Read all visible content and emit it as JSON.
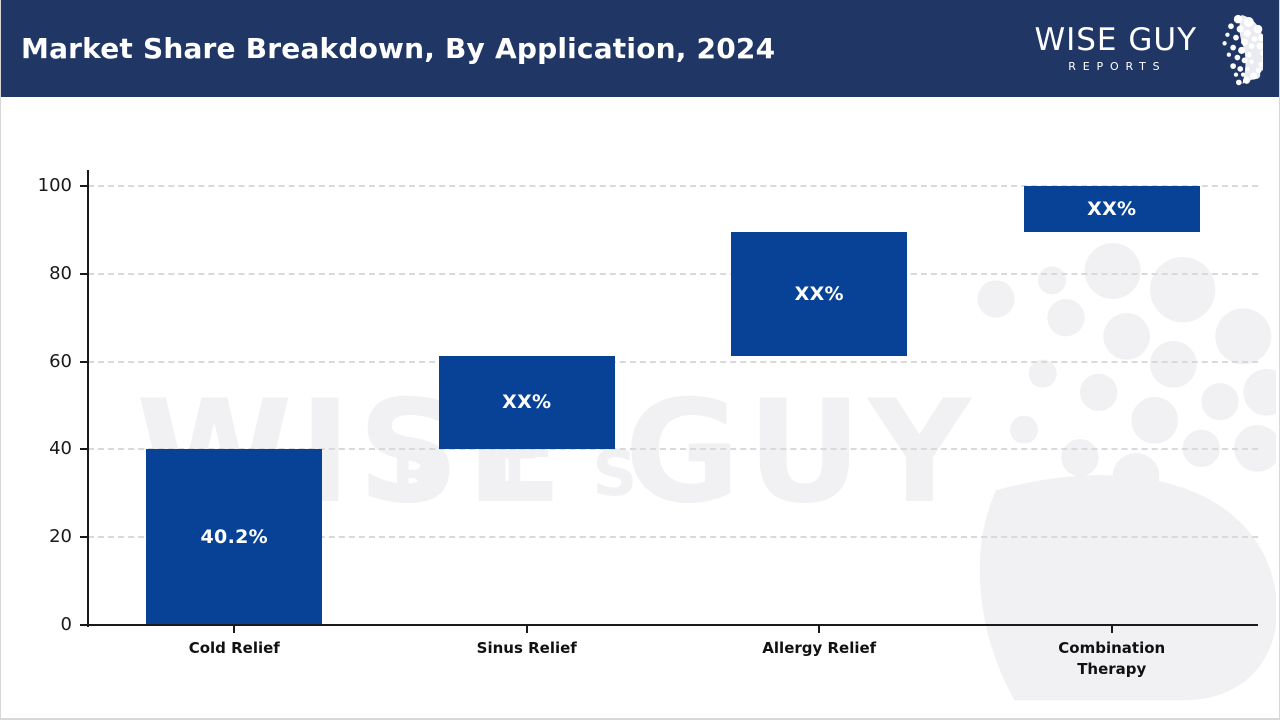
{
  "header": {
    "title": "Market Share Breakdown, By Application, 2024",
    "bg_color": "#203766",
    "logo": {
      "line1": "WISE GUY",
      "line2": "REPORTS",
      "face_icon": "dotted-head-profile"
    }
  },
  "watermark": {
    "line1": "WISE GUY",
    "line2": "PORTS",
    "face_icon": "dotted-head-profile"
  },
  "chart_data": {
    "type": "bar",
    "subtype": "waterfall",
    "title": "Market Share Breakdown, By Application, 2024",
    "xlabel": "",
    "ylabel": "",
    "ylim": [
      0,
      100
    ],
    "yticks": [
      0,
      20,
      40,
      60,
      80,
      100
    ],
    "grid": "dashed-horizontal",
    "legend": "none",
    "bar_color": "#084297",
    "label_color": "#ffffff",
    "categories": [
      "Cold Relief",
      "Sinus Relief",
      "Allergy Relief",
      "Combination Therapy"
    ],
    "segments": [
      {
        "category": "Cold Relief",
        "start": 0,
        "end": 40.2,
        "label": "40.2%"
      },
      {
        "category": "Sinus Relief",
        "start": 40.2,
        "end": 61.2,
        "label": "XX%"
      },
      {
        "category": "Allergy Relief",
        "start": 61.2,
        "end": 89.5,
        "label": "XX%"
      },
      {
        "category": "Combination Therapy",
        "start": 89.5,
        "end": 100,
        "label": "XX%"
      }
    ]
  }
}
